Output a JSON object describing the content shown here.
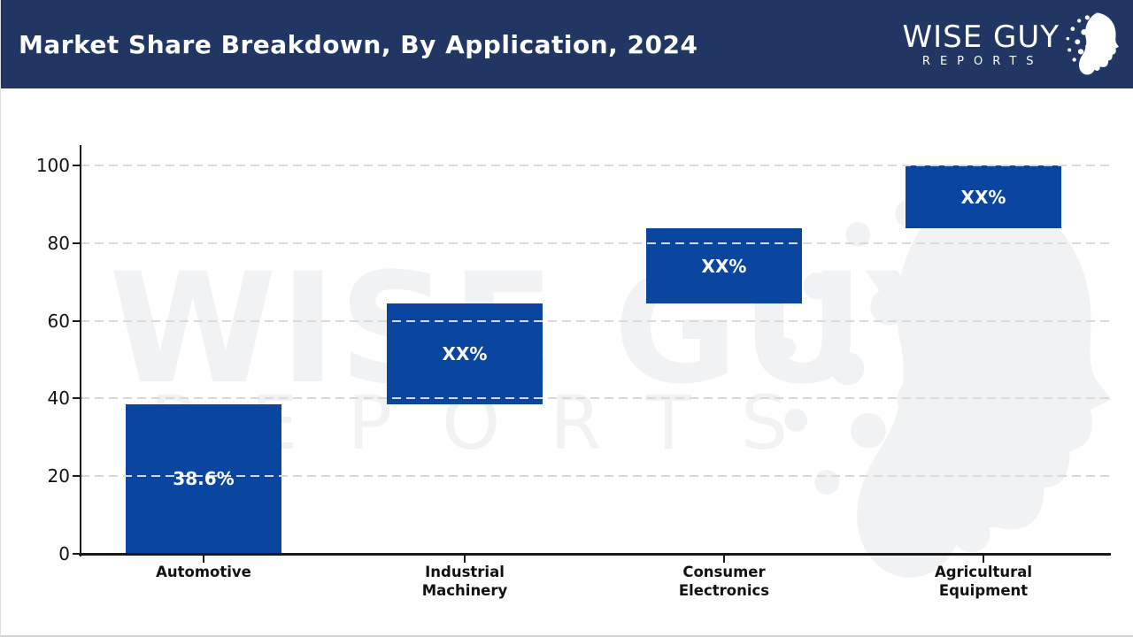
{
  "header": {
    "title": "Market Share Breakdown, By Application, 2024",
    "logo": {
      "line1": "WISE GUY",
      "line2": "REPORTS"
    }
  },
  "watermark": {
    "line1": "WISE GUY",
    "line2": "REPORTS"
  },
  "chart_data": {
    "type": "bar",
    "subtype": "waterfall-floating-bars",
    "title": "Market Share Breakdown, By Application, 2024",
    "categories": [
      "Automotive",
      "Industrial Machinery",
      "Consumer Electronics",
      "Agricultural Equipment"
    ],
    "category_lines": [
      [
        "Automotive"
      ],
      [
        "Industrial",
        "Machinery"
      ],
      [
        "Consumer",
        "Electronics"
      ],
      [
        "Agricultural",
        "Equipment"
      ]
    ],
    "segments": [
      {
        "category": "Automotive",
        "start": 0,
        "end": 38.6,
        "label": "38.6%"
      },
      {
        "category": "Industrial Machinery",
        "start": 38.6,
        "end": 64.4,
        "label": "XX%"
      },
      {
        "category": "Consumer Electronics",
        "start": 64.4,
        "end": 83.8,
        "label": "XX%"
      },
      {
        "category": "Agricultural Equipment",
        "start": 83.8,
        "end": 100,
        "label": "XX%"
      }
    ],
    "yticks": [
      0,
      20,
      40,
      60,
      80,
      100
    ],
    "ylim": [
      0,
      105
    ],
    "xlabel": "",
    "ylabel": "",
    "grid": "dashed-horizontal-over-bars",
    "legend": "none",
    "bar_color": "#0a46a0",
    "bar_label_color": "#ffffff"
  },
  "colors": {
    "header_bg": "#213663",
    "bar": "#0a46a0",
    "grid": "#d9d9d9",
    "axis": "#1a1a1a",
    "watermark": "#f1f2f4",
    "text": "#111111"
  }
}
